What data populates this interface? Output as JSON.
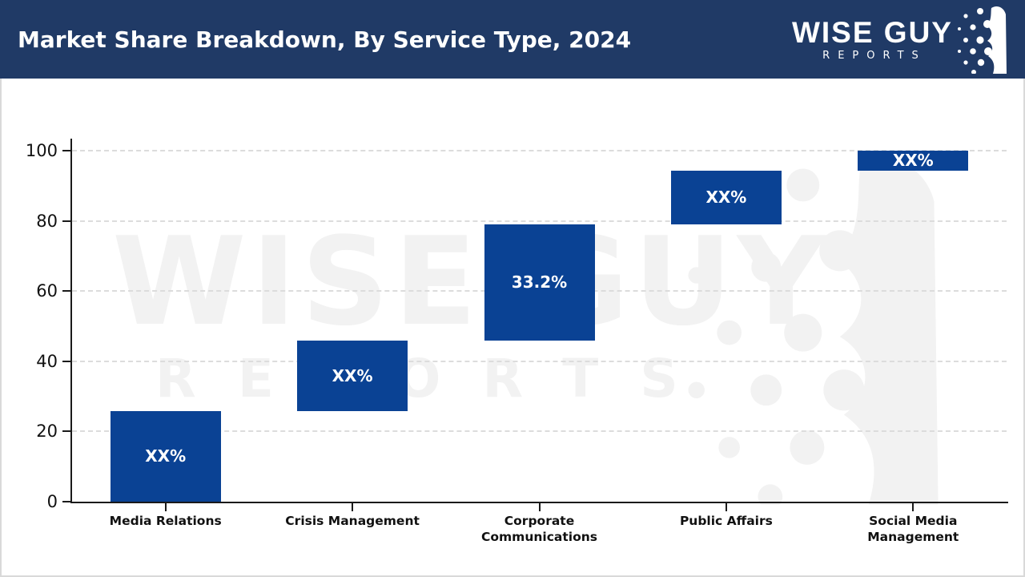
{
  "header": {
    "title": "Market Share Breakdown, By Service Type, 2024",
    "logo": {
      "brand": "WISE GUY",
      "sub": "REPORTS"
    }
  },
  "watermark": {
    "brand": "WISE GUY",
    "sub": "REPORTS"
  },
  "chart_data": {
    "type": "bar",
    "subtype": "waterfall",
    "title": "Market Share Breakdown, By Service Type, 2024",
    "categories": [
      "Media Relations",
      "Crisis Management",
      "Corporate Communications",
      "Public Affairs",
      "Social Media Management"
    ],
    "category_lines": [
      [
        "Media Relations"
      ],
      [
        "Crisis Management"
      ],
      [
        "Corporate",
        "Communications"
      ],
      [
        "Public Affairs"
      ],
      [
        "Social Media",
        "Management"
      ]
    ],
    "segments": [
      {
        "category": "Media Relations",
        "start": 0,
        "end": 25.8,
        "value": 25.8,
        "label": "XX%"
      },
      {
        "category": "Crisis Management",
        "start": 25.8,
        "end": 45.9,
        "value": 20.1,
        "label": "XX%"
      },
      {
        "category": "Corporate Communications",
        "start": 45.9,
        "end": 79.1,
        "value": 33.2,
        "label": "33.2%"
      },
      {
        "category": "Public Affairs",
        "start": 79.1,
        "end": 94.4,
        "value": 15.3,
        "label": "XX%"
      },
      {
        "category": "Social Media Management",
        "start": 94.4,
        "end": 100,
        "value": 5.6,
        "label": "XX%"
      }
    ],
    "ylim": [
      0,
      100
    ],
    "yticks": [
      0,
      20,
      40,
      60,
      80,
      100
    ],
    "xlabel": "",
    "ylabel": "",
    "grid": "horizontal-dashed",
    "legend": "none",
    "bar_color": "#0a4294",
    "bar_label_color": "#ffffff",
    "axis_color": "#1a1a1a",
    "gridline_color": "#dcdcdc",
    "header_color": "#203a66"
  }
}
